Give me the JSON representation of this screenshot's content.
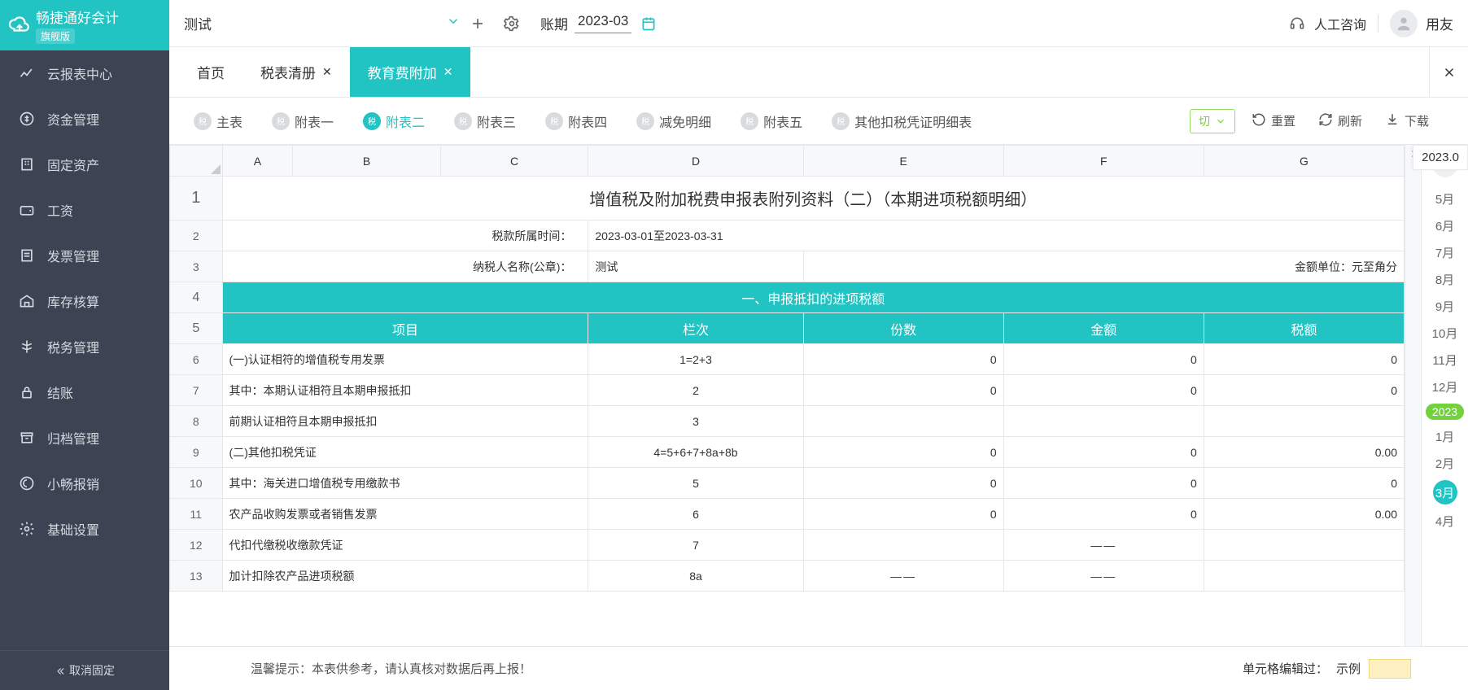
{
  "brand": {
    "name": "畅捷通好会计",
    "edition": "旗舰版"
  },
  "sidebar": {
    "items": [
      {
        "label": "云报表中心"
      },
      {
        "label": "资金管理"
      },
      {
        "label": "固定资产"
      },
      {
        "label": "工资"
      },
      {
        "label": "发票管理"
      },
      {
        "label": "库存核算"
      },
      {
        "label": "税务管理"
      },
      {
        "label": "结账"
      },
      {
        "label": "归档管理"
      },
      {
        "label": "小畅报销"
      },
      {
        "label": "基础设置"
      }
    ],
    "unpin": "取消固定"
  },
  "topbar": {
    "company": "测试",
    "period_label": "账期",
    "period": "2023-03",
    "consult": "人工咨询",
    "user": "用友"
  },
  "tabs": [
    {
      "label": "首页",
      "closable": false,
      "active": false
    },
    {
      "label": "税表清册",
      "closable": true,
      "active": false
    },
    {
      "label": "教育费附加",
      "closable": true,
      "active": true
    }
  ],
  "subtabs": [
    {
      "label": "主表"
    },
    {
      "label": "附表一"
    },
    {
      "label": "附表二",
      "active": true
    },
    {
      "label": "附表三"
    },
    {
      "label": "附表四"
    },
    {
      "label": "减免明细"
    },
    {
      "label": "附表五"
    },
    {
      "label": "其他扣税凭证明细表"
    }
  ],
  "extra_btn": "切",
  "actions": {
    "reset": "重置",
    "refresh": "刷新",
    "download": "下载"
  },
  "columns": [
    "A",
    "B",
    "C",
    "D",
    "E",
    "F",
    "G"
  ],
  "sheet": {
    "title": "增值税及附加税费申报表附列资料（二）（本期进项税额明细）",
    "period_label": "税款所属时间：",
    "period_range": "2023-03-01至2023-03-31",
    "taxpayer_label": "纳税人名称(公章)：",
    "taxpayer": "测试",
    "unit_label": "金额单位：元至角分",
    "section1": "一、申报抵扣的进项税额",
    "headers": {
      "c1": "项目",
      "c2": "栏次",
      "c3": "份数",
      "c4": "金额",
      "c5": "税额"
    },
    "rows": [
      {
        "n": "6",
        "a": "(一)认证相符的增值税专用发票",
        "b": "1=2+3",
        "c": "0",
        "d": "0",
        "e": "0"
      },
      {
        "n": "7",
        "a": "其中：本期认证相符且本期申报抵扣",
        "b": "2",
        "c": "0",
        "d": "0",
        "e": "0"
      },
      {
        "n": "8",
        "a": "前期认证相符且本期申报抵扣",
        "b": "3",
        "c": "",
        "d": "",
        "e": ""
      },
      {
        "n": "9",
        "a": "(二)其他扣税凭证",
        "b": "4=5+6+7+8a+8b",
        "c": "0",
        "d": "0",
        "e": "0.00"
      },
      {
        "n": "10",
        "a": "其中：海关进口增值税专用缴款书",
        "b": "5",
        "c": "0",
        "d": "0",
        "e": "0"
      },
      {
        "n": "11",
        "a": "农产品收购发票或者销售发票",
        "b": "6",
        "c": "0",
        "d": "0",
        "e": "0.00"
      },
      {
        "n": "12",
        "a": "代扣代缴税收缴款凭证",
        "b": "7",
        "c": "",
        "d": "——",
        "e": ""
      },
      {
        "n": "13",
        "a": "加计扣除农产品进项税额",
        "b": "8a",
        "c": "——",
        "d": "——",
        "e": ""
      }
    ]
  },
  "footer": {
    "hint": "温馨提示：本表供参考，请认真核对数据后再上报！",
    "edit_label": "单元格编辑过：",
    "sample": "示例"
  },
  "yearcol": {
    "year_label": "2023.0",
    "pre": [
      "5月",
      "6月",
      "7月",
      "8月",
      "9月",
      "10月",
      "11月",
      "12月"
    ],
    "badge": "2023",
    "post": [
      "1月",
      "2月"
    ],
    "active": "3月",
    "after": [
      "4月"
    ]
  },
  "colors": {
    "primary": "#22c3c3",
    "sidebar": "#3c4454",
    "grid": "#e5e7ea"
  }
}
